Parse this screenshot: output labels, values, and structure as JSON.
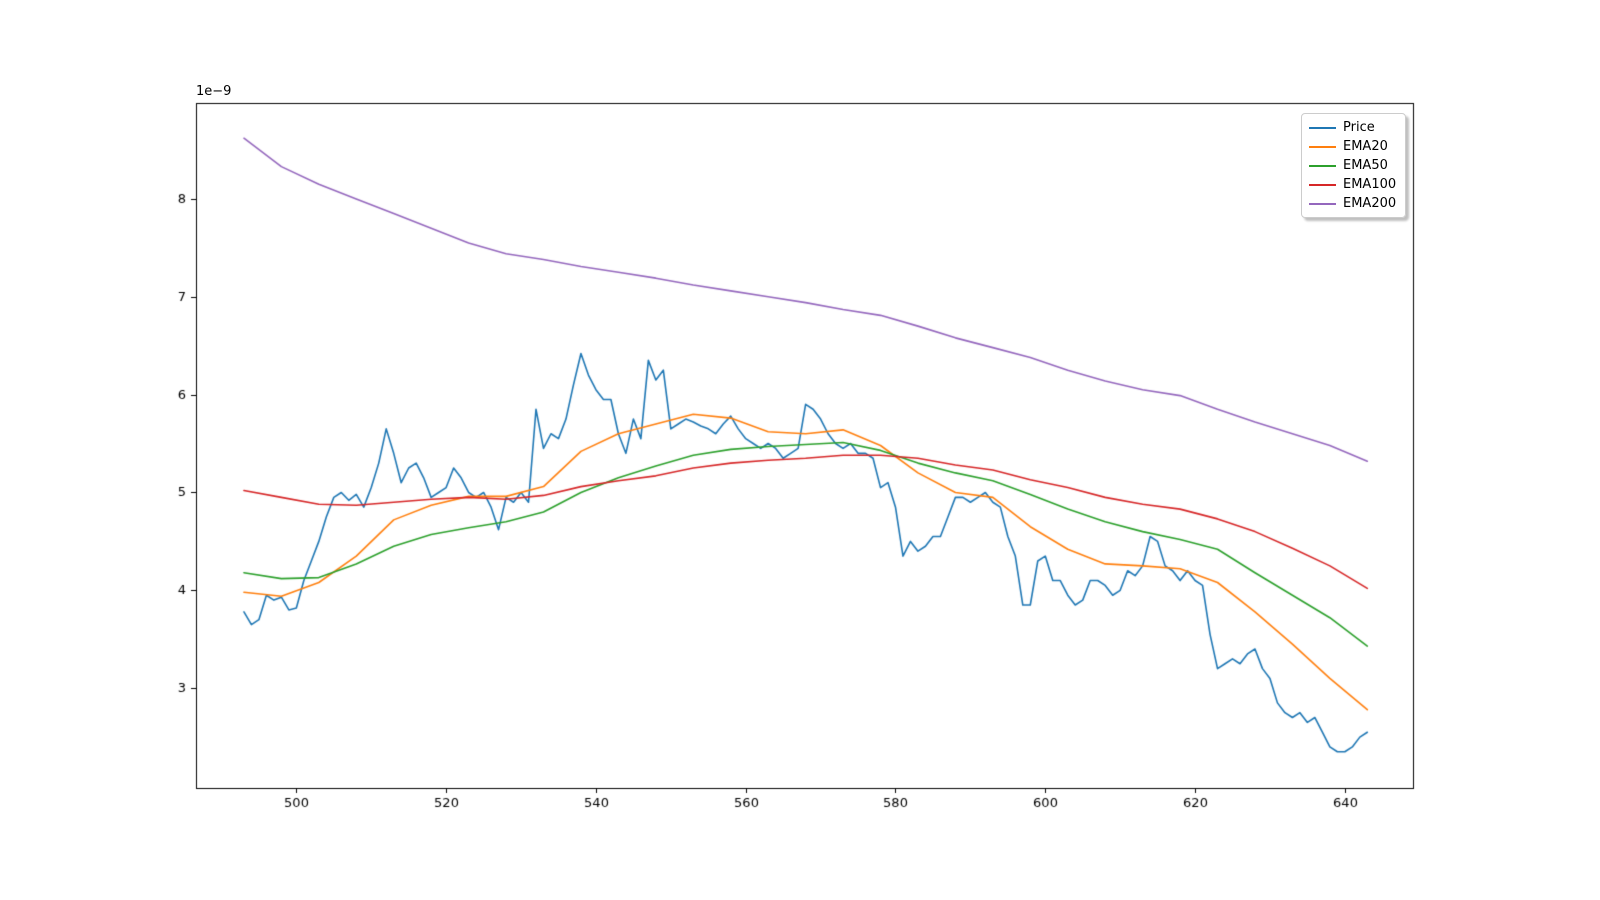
{
  "chart_data": {
    "type": "line",
    "title": "",
    "xlabel": "",
    "ylabel": "",
    "offset_text": "1e−9",
    "y_scale_note": "y values are multiplied by 1e-9",
    "grid": false,
    "legend_position": "upper right",
    "xlim": [
      486.6,
      649.1
    ],
    "ylim": [
      1.98,
      8.98
    ],
    "x_ticks": [
      500,
      520,
      540,
      560,
      580,
      600,
      620,
      640
    ],
    "y_ticks": [
      3,
      4,
      5,
      6,
      7,
      8
    ],
    "series": [
      {
        "name": "Price",
        "color": "#1f77b4",
        "x_start": 493,
        "x_step": 1,
        "values": [
          3.78,
          3.65,
          3.7,
          3.95,
          3.9,
          3.93,
          3.8,
          3.82,
          4.1,
          4.3,
          4.5,
          4.75,
          4.95,
          5.0,
          4.92,
          4.98,
          4.85,
          5.05,
          5.3,
          5.65,
          5.4,
          5.1,
          5.25,
          5.3,
          5.15,
          4.95,
          5.0,
          5.05,
          5.25,
          5.15,
          5.0,
          4.95,
          5.0,
          4.85,
          4.62,
          4.95,
          4.9,
          5.0,
          4.9,
          5.85,
          5.45,
          5.6,
          5.55,
          5.75,
          6.1,
          6.42,
          6.2,
          6.05,
          5.95,
          5.95,
          5.6,
          5.4,
          5.75,
          5.55,
          6.35,
          6.15,
          6.25,
          5.65,
          5.7,
          5.75,
          5.72,
          5.68,
          5.65,
          5.6,
          5.7,
          5.78,
          5.65,
          5.55,
          5.5,
          5.45,
          5.5,
          5.45,
          5.35,
          5.4,
          5.45,
          5.9,
          5.85,
          5.75,
          5.6,
          5.5,
          5.45,
          5.5,
          5.4,
          5.4,
          5.35,
          5.05,
          5.1,
          4.85,
          4.35,
          4.5,
          4.4,
          4.45,
          4.55,
          4.55,
          4.75,
          4.95,
          4.95,
          4.9,
          4.95,
          5.0,
          4.9,
          4.85,
          4.55,
          4.35,
          3.85,
          3.85,
          4.3,
          4.35,
          4.1,
          4.1,
          3.95,
          3.85,
          3.9,
          4.1,
          4.1,
          4.05,
          3.95,
          4.0,
          4.2,
          4.15,
          4.25,
          4.55,
          4.5,
          4.25,
          4.2,
          4.1,
          4.2,
          4.1,
          4.05,
          3.55,
          3.2,
          3.25,
          3.3,
          3.25,
          3.35,
          3.4,
          3.2,
          3.1,
          2.85,
          2.75,
          2.7,
          2.75,
          2.65,
          2.7,
          2.55,
          2.4,
          2.35,
          2.35,
          2.4,
          2.5,
          2.55
        ]
      },
      {
        "name": "EMA20",
        "color": "#ff7f0e",
        "x_start": 493,
        "x_step": 5,
        "values": [
          3.98,
          3.94,
          4.08,
          4.35,
          4.72,
          4.87,
          4.96,
          4.96,
          5.06,
          5.42,
          5.6,
          5.7,
          5.8,
          5.76,
          5.62,
          5.6,
          5.64,
          5.48,
          5.2,
          5.0,
          4.95,
          4.65,
          4.42,
          4.27,
          4.25,
          4.22,
          4.08,
          3.78,
          3.45,
          3.1,
          2.78
        ]
      },
      {
        "name": "EMA50",
        "color": "#2ca02c",
        "x_start": 493,
        "x_step": 5,
        "values": [
          4.18,
          4.12,
          4.13,
          4.27,
          4.45,
          4.57,
          4.64,
          4.7,
          4.8,
          5.0,
          5.15,
          5.27,
          5.38,
          5.44,
          5.47,
          5.49,
          5.51,
          5.43,
          5.3,
          5.2,
          5.12,
          4.98,
          4.83,
          4.7,
          4.6,
          4.52,
          4.42,
          4.18,
          3.95,
          3.72,
          3.43
        ]
      },
      {
        "name": "EMA100",
        "color": "#d62728",
        "x_start": 493,
        "x_step": 5,
        "values": [
          5.02,
          4.95,
          4.88,
          4.87,
          4.9,
          4.93,
          4.95,
          4.93,
          4.97,
          5.06,
          5.12,
          5.17,
          5.25,
          5.3,
          5.33,
          5.35,
          5.38,
          5.38,
          5.35,
          5.28,
          5.23,
          5.13,
          5.05,
          4.95,
          4.88,
          4.83,
          4.73,
          4.6,
          4.43,
          4.25,
          4.02
        ]
      },
      {
        "name": "EMA200",
        "color": "#9467bd",
        "x_start": 493,
        "x_step": 5,
        "values": [
          8.62,
          8.33,
          8.15,
          8.0,
          7.85,
          7.7,
          7.55,
          7.44,
          7.38,
          7.31,
          7.25,
          7.19,
          7.12,
          7.06,
          7.0,
          6.94,
          6.87,
          6.81,
          6.7,
          6.58,
          6.48,
          6.38,
          6.25,
          6.14,
          6.05,
          5.99,
          5.85,
          5.72,
          5.6,
          5.48,
          5.32
        ]
      }
    ]
  }
}
